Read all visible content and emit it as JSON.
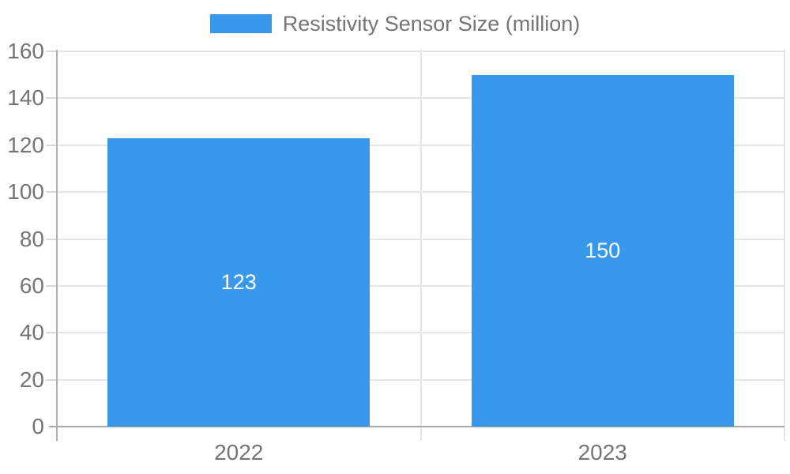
{
  "chart_data": {
    "type": "bar",
    "title": "",
    "legend": {
      "label": "Resistivity Sensor Size (million)",
      "position": "top"
    },
    "categories": [
      "2022",
      "2023"
    ],
    "series": [
      {
        "name": "Resistivity Sensor Size (million)",
        "values": [
          123,
          150
        ]
      }
    ],
    "data_labels": [
      "123",
      "150"
    ],
    "xlabel": "",
    "ylabel": "",
    "ylim": [
      0,
      160
    ],
    "yticks": [
      0,
      20,
      40,
      60,
      80,
      100,
      120,
      140,
      160
    ],
    "grid": true,
    "bar_width_fraction": 0.72
  },
  "colors": {
    "bar_fill": "#3898ec",
    "legend_text": "#757575",
    "axis_text": "#757575",
    "data_label_text": "#ffffff",
    "gridline": "#e6e6e6",
    "tick": "#d9d9d9",
    "y_axis_line": "#b0b0b0",
    "x_axis_line": "#a9a9a9",
    "background": "#ffffff"
  }
}
